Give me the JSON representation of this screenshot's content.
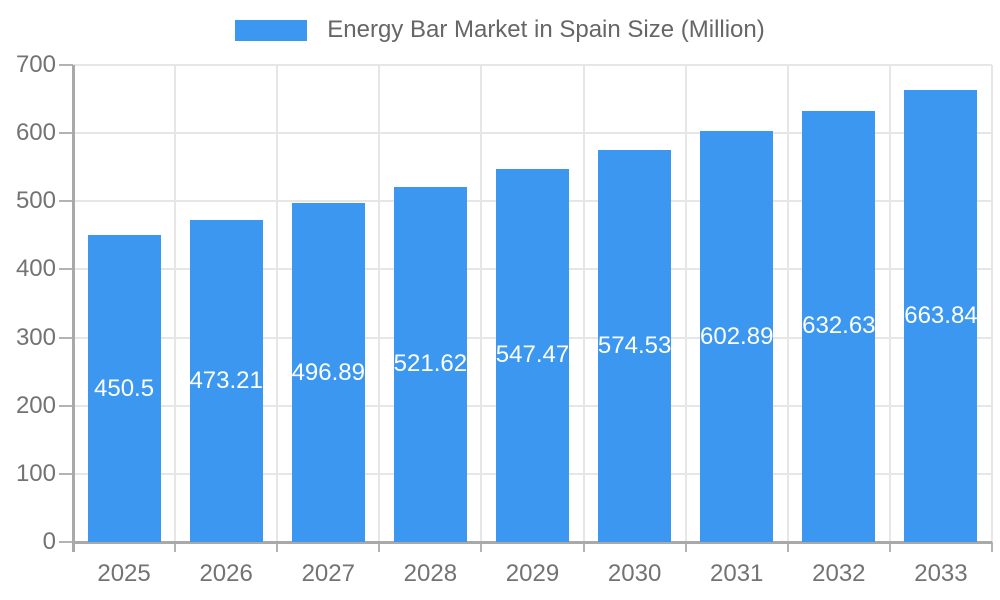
{
  "chart_data": {
    "type": "bar",
    "title": "Energy Bar Market in Spain Size (Million)",
    "categories": [
      "2025",
      "2026",
      "2027",
      "2028",
      "2029",
      "2030",
      "2031",
      "2032",
      "2033"
    ],
    "series": [
      {
        "name": "Energy Bar Market in Spain Size (Million)",
        "values": [
          450.5,
          473.21,
          496.89,
          521.62,
          547.47,
          574.53,
          602.89,
          632.63,
          663.84
        ]
      }
    ],
    "value_labels": [
      "450.5",
      "473.21",
      "496.89",
      "521.62",
      "547.47",
      "574.53",
      "602.89",
      "632.63",
      "663.84"
    ],
    "xlabel": "",
    "ylabel": "",
    "ylim": [
      0,
      700
    ],
    "ytick_step": 100,
    "ytick_labels": [
      "0",
      "100",
      "200",
      "300",
      "400",
      "500",
      "600",
      "700"
    ],
    "grid": true,
    "legend_position": "top",
    "colors": {
      "bar": "#3b97ef",
      "grid_line": "#e6e6e6",
      "axis_line": "#a9a9a9",
      "tick_mark": "#b3b3b3",
      "tick_text": "#737373",
      "title_text": "#666666",
      "value_label_text": "#ffffff",
      "background": "#ffffff"
    }
  }
}
